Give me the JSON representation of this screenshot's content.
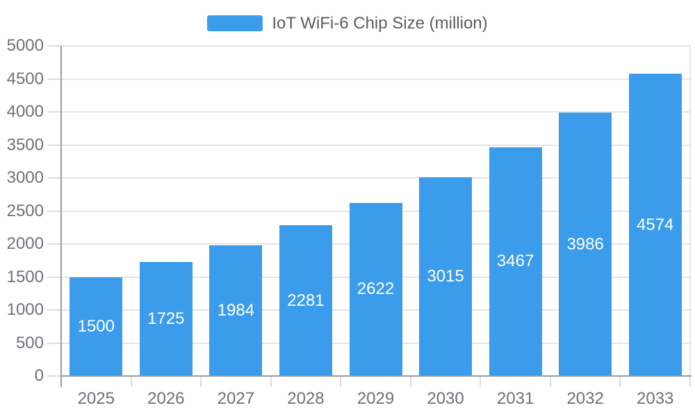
{
  "legend": {
    "label": "IoT WiFi-6 Chip Size (million)"
  },
  "chart_data": {
    "type": "bar",
    "title": "IoT WiFi-6 Chip Size (million)",
    "series": [
      {
        "name": "IoT WiFi-6 Chip Size (million)",
        "values": [
          1500,
          1725,
          1984,
          2281,
          2622,
          3015,
          3467,
          3986,
          4574
        ]
      }
    ],
    "categories": [
      "2025",
      "2026",
      "2027",
      "2028",
      "2029",
      "2030",
      "2031",
      "2032",
      "2033"
    ],
    "xlabel": "",
    "ylabel": "",
    "ylim": [
      0,
      5000
    ],
    "ytick_step": 500,
    "ytick_labels": [
      "0",
      "500",
      "1000",
      "1500",
      "2000",
      "2500",
      "3000",
      "3500",
      "4000",
      "4500",
      "5000"
    ],
    "grid": true,
    "legend_position": "top-center",
    "value_labels": "inside-center",
    "colors": {
      "bar": "#3b9cec",
      "value_label": "#ffffff",
      "axis_label": "#6e7079",
      "gridline": "#e4e4e4",
      "tick": "#dddddd",
      "axis_line": "#999999",
      "legend_text": "#5b5c60",
      "background": "#ffffff"
    }
  }
}
